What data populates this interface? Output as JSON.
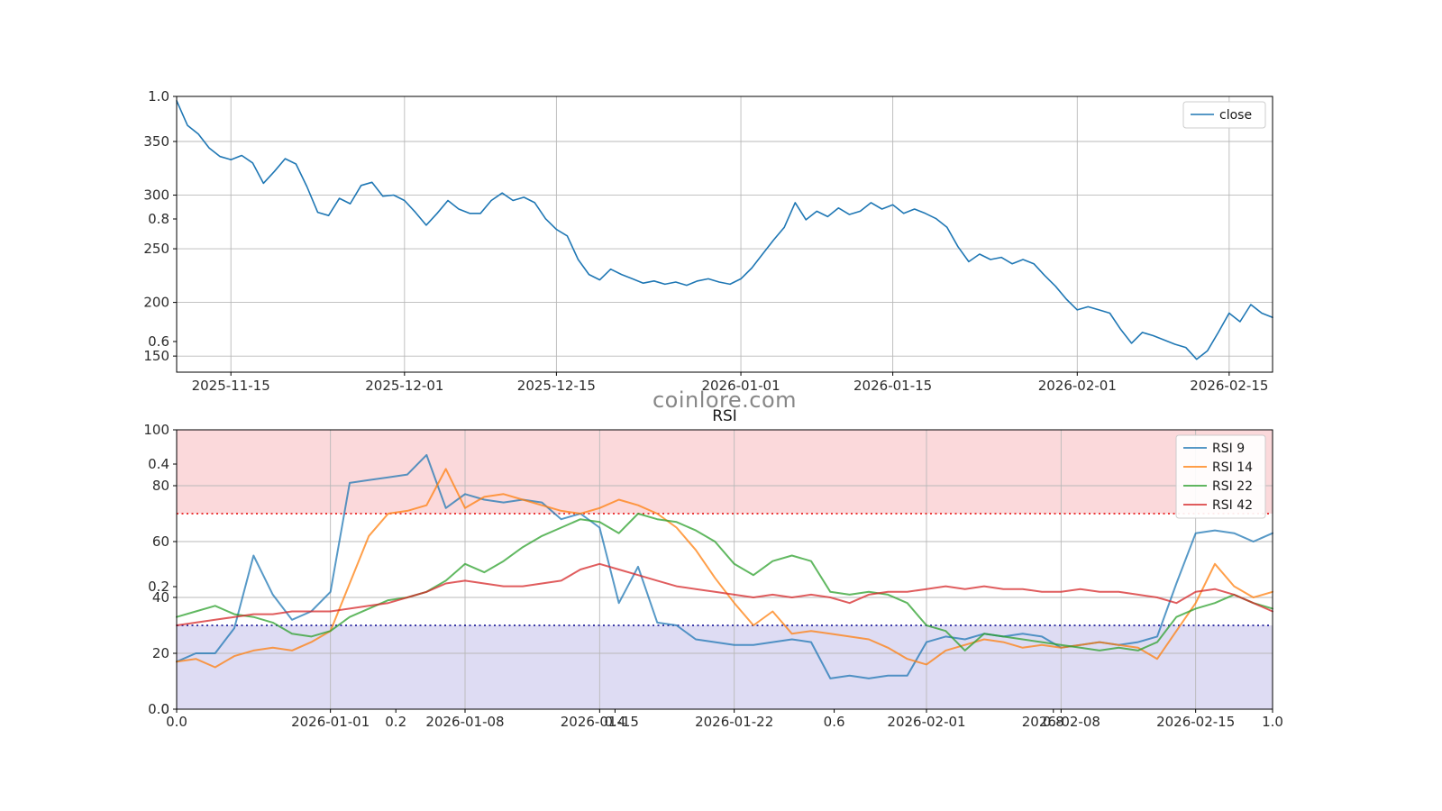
{
  "figure": {
    "watermark": "coinlore.com",
    "background": "#ffffff",
    "grid_color": "#b9b9b9",
    "spine_color": "#000000",
    "tick_label_color": "#2b2b2b"
  },
  "twin_axis": {
    "y_labels": [
      "1.0",
      "0.8",
      "0.6",
      "0.4",
      "0.2",
      "0.0"
    ],
    "x_labels": [
      "0.0",
      "0.2",
      "0.4",
      "0.6",
      "0.8",
      "1.0"
    ]
  },
  "chart_data": [
    {
      "type": "line",
      "panel": "price",
      "title": "",
      "ylim": [
        135,
        392
      ],
      "yticks": [
        150,
        200,
        250,
        300,
        350
      ],
      "grid": true,
      "legend_position": "upper right",
      "xticks": [
        "2025-11-15",
        "2025-12-01",
        "2025-12-15",
        "2026-01-01",
        "2026-01-15",
        "2026-02-01",
        "2026-02-15"
      ],
      "x_dates": [
        "2025-11-10",
        "2025-11-11",
        "2025-11-12",
        "2025-11-13",
        "2025-11-14",
        "2025-11-15",
        "2025-11-16",
        "2025-11-17",
        "2025-11-18",
        "2025-11-19",
        "2025-11-20",
        "2025-11-21",
        "2025-11-22",
        "2025-11-23",
        "2025-11-24",
        "2025-11-25",
        "2025-11-26",
        "2025-11-27",
        "2025-11-28",
        "2025-11-29",
        "2025-11-30",
        "2025-12-01",
        "2025-12-02",
        "2025-12-03",
        "2025-12-04",
        "2025-12-05",
        "2025-12-06",
        "2025-12-07",
        "2025-12-08",
        "2025-12-09",
        "2025-12-10",
        "2025-12-11",
        "2025-12-12",
        "2025-12-13",
        "2025-12-14",
        "2025-12-15",
        "2025-12-16",
        "2025-12-17",
        "2025-12-18",
        "2025-12-19",
        "2025-12-20",
        "2025-12-21",
        "2025-12-22",
        "2025-12-23",
        "2025-12-24",
        "2025-12-25",
        "2025-12-26",
        "2025-12-27",
        "2025-12-28",
        "2025-12-29",
        "2025-12-30",
        "2025-12-31",
        "2026-01-01",
        "2026-01-02",
        "2026-01-03",
        "2026-01-04",
        "2026-01-05",
        "2026-01-06",
        "2026-01-07",
        "2026-01-08",
        "2026-01-09",
        "2026-01-10",
        "2026-01-11",
        "2026-01-12",
        "2026-01-13",
        "2026-01-14",
        "2026-01-15",
        "2026-01-16",
        "2026-01-17",
        "2026-01-18",
        "2026-01-19",
        "2026-01-20",
        "2026-01-21",
        "2026-01-22",
        "2026-01-23",
        "2026-01-24",
        "2026-01-25",
        "2026-01-26",
        "2026-01-27",
        "2026-01-28",
        "2026-01-29",
        "2026-01-30",
        "2026-01-31",
        "2026-02-01",
        "2026-02-02",
        "2026-02-03",
        "2026-02-04",
        "2026-02-05",
        "2026-02-06",
        "2026-02-07",
        "2026-02-08",
        "2026-02-09",
        "2026-02-10",
        "2026-02-11",
        "2026-02-12",
        "2026-02-13",
        "2026-02-14",
        "2026-02-15",
        "2026-02-16",
        "2026-02-17",
        "2026-02-18",
        "2026-02-19"
      ],
      "series": [
        {
          "name": "close",
          "color": "#1f77b4",
          "width": 1.6,
          "opacity": 1,
          "values": [
            388,
            365,
            357,
            344,
            336,
            333,
            337,
            330,
            311,
            322,
            334,
            329,
            308,
            284,
            281,
            297,
            292,
            309,
            312,
            299,
            300,
            295,
            284,
            272,
            283,
            295,
            287,
            283,
            283,
            295,
            302,
            295,
            298,
            293,
            278,
            268,
            262,
            240,
            226,
            221,
            231,
            226,
            222,
            218,
            220,
            217,
            219,
            216,
            220,
            222,
            219,
            217,
            222,
            232,
            245,
            258,
            270,
            293,
            277,
            285,
            280,
            288,
            282,
            285,
            293,
            287,
            291,
            283,
            287,
            283,
            278,
            270,
            252,
            238,
            245,
            240,
            242,
            236,
            240,
            236,
            225,
            215,
            203,
            193,
            196,
            193,
            190,
            175,
            162,
            172,
            169,
            165,
            161,
            158,
            147,
            155,
            172,
            190,
            182,
            198,
            190,
            186
          ]
        }
      ]
    },
    {
      "type": "line",
      "panel": "rsi",
      "title": "RSI",
      "ylim": [
        0,
        100
      ],
      "yticks": [
        0,
        20,
        40,
        60,
        80,
        100
      ],
      "grid": true,
      "legend_position": "upper right",
      "overbought_level": 70,
      "oversold_level": 30,
      "bands": {
        "overbought_fill": "#fbd9db",
        "oversold_fill": "#dedcf3",
        "overbought_line": "#e60000",
        "oversold_line": "#00008b"
      },
      "xticks": [
        "2026-01-01",
        "2026-01-08",
        "2026-01-15",
        "2026-01-22",
        "2026-02-01",
        "2026-02-08",
        "2026-02-15"
      ],
      "x_dates": [
        "2025-12-24",
        "2025-12-25",
        "2025-12-26",
        "2025-12-27",
        "2025-12-28",
        "2025-12-29",
        "2025-12-30",
        "2025-12-31",
        "2026-01-01",
        "2026-01-02",
        "2026-01-03",
        "2026-01-04",
        "2026-01-05",
        "2026-01-06",
        "2026-01-07",
        "2026-01-08",
        "2026-01-09",
        "2026-01-10",
        "2026-01-11",
        "2026-01-12",
        "2026-01-13",
        "2026-01-14",
        "2026-01-15",
        "2026-01-16",
        "2026-01-17",
        "2026-01-18",
        "2026-01-19",
        "2026-01-20",
        "2026-01-21",
        "2026-01-22",
        "2026-01-23",
        "2026-01-24",
        "2026-01-25",
        "2026-01-26",
        "2026-01-27",
        "2026-01-28",
        "2026-01-29",
        "2026-01-30",
        "2026-01-31",
        "2026-02-01",
        "2026-02-02",
        "2026-02-03",
        "2026-02-04",
        "2026-02-05",
        "2026-02-06",
        "2026-02-07",
        "2026-02-08",
        "2026-02-09",
        "2026-02-10",
        "2026-02-11",
        "2026-02-12",
        "2026-02-13",
        "2026-02-14",
        "2026-02-15",
        "2026-02-16",
        "2026-02-17",
        "2026-02-18",
        "2026-02-19"
      ],
      "series": [
        {
          "name": "RSI 9",
          "color": "#1f77b4",
          "width": 2,
          "opacity": 0.75,
          "values": [
            17,
            20,
            20,
            29,
            55,
            41,
            32,
            35,
            42,
            81,
            82,
            83,
            84,
            91,
            72,
            77,
            75,
            74,
            75,
            74,
            68,
            70,
            65,
            38,
            51,
            31,
            30,
            25,
            24,
            23,
            23,
            24,
            25,
            24,
            11,
            12,
            11,
            12,
            12,
            24,
            26,
            25,
            27,
            26,
            27,
            26,
            22,
            23,
            24,
            23,
            24,
            26,
            45,
            63,
            64,
            63,
            60,
            63
          ]
        },
        {
          "name": "RSI 14",
          "color": "#ff7f0e",
          "width": 2,
          "opacity": 0.75,
          "values": [
            17,
            18,
            15,
            19,
            21,
            22,
            21,
            24,
            28,
            45,
            62,
            70,
            71,
            73,
            86,
            72,
            76,
            77,
            75,
            73,
            71,
            70,
            72,
            75,
            73,
            70,
            65,
            57,
            47,
            38,
            30,
            35,
            27,
            28,
            27,
            26,
            25,
            22,
            18,
            16,
            21,
            23,
            25,
            24,
            22,
            23,
            22,
            23,
            24,
            23,
            22,
            18,
            28,
            38,
            52,
            44,
            40,
            42
          ]
        },
        {
          "name": "RSI 22",
          "color": "#2ca02c",
          "width": 2,
          "opacity": 0.75,
          "values": [
            33,
            35,
            37,
            34,
            33,
            31,
            27,
            26,
            28,
            33,
            36,
            39,
            40,
            42,
            46,
            52,
            49,
            53,
            58,
            62,
            65,
            68,
            67,
            63,
            70,
            68,
            67,
            64,
            60,
            52,
            48,
            53,
            55,
            53,
            42,
            41,
            42,
            41,
            38,
            30,
            28,
            21,
            27,
            26,
            25,
            24,
            23,
            22,
            21,
            22,
            21,
            24,
            33,
            36,
            38,
            41,
            38,
            36
          ]
        },
        {
          "name": "RSI 42",
          "color": "#d62728",
          "width": 2,
          "opacity": 0.75,
          "values": [
            30,
            31,
            32,
            33,
            34,
            34,
            35,
            35,
            35,
            36,
            37,
            38,
            40,
            42,
            45,
            46,
            45,
            44,
            44,
            45,
            46,
            50,
            52,
            50,
            48,
            46,
            44,
            43,
            42,
            41,
            40,
            41,
            40,
            41,
            40,
            38,
            41,
            42,
            42,
            43,
            44,
            43,
            44,
            43,
            43,
            42,
            42,
            43,
            42,
            42,
            41,
            40,
            38,
            42,
            43,
            41,
            38,
            35
          ]
        }
      ]
    }
  ]
}
